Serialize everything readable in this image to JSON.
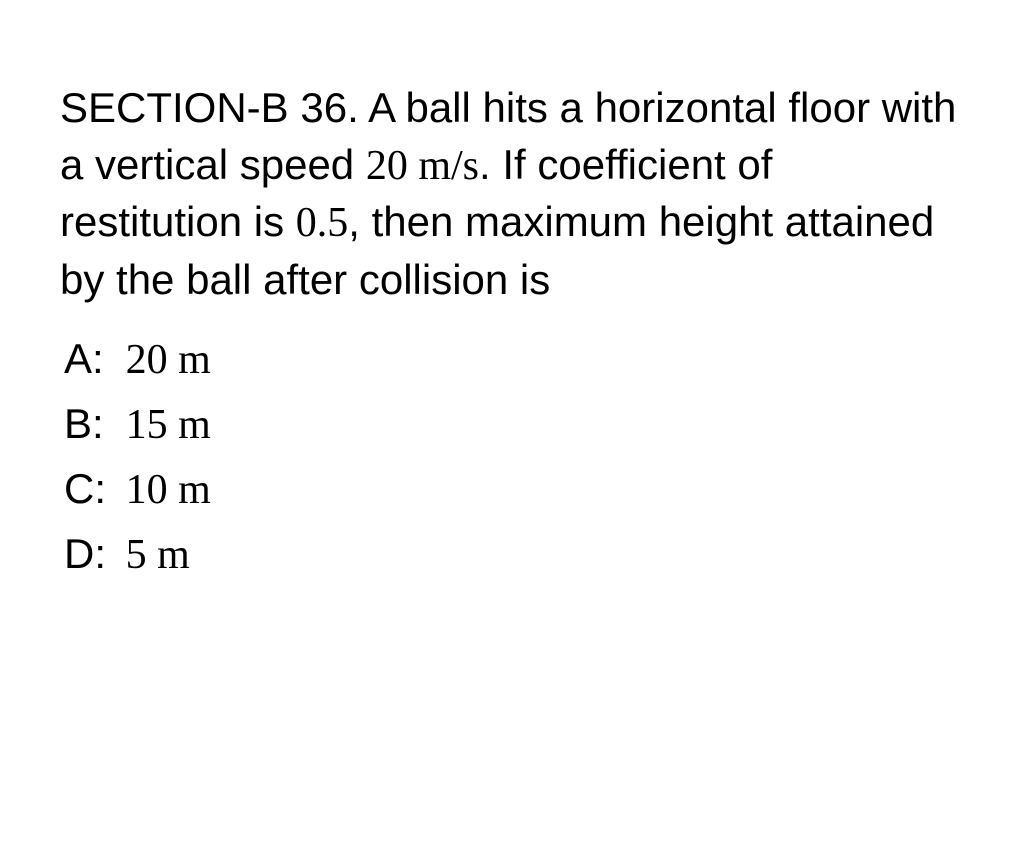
{
  "question": {
    "section_label": "SECTION-B 36.",
    "text_part1": " A ball hits a horizontal floor with a vertical speed ",
    "speed_value": "20 m/s",
    "text_part2": ". If coefficient of restitution is ",
    "restitution_value": "0.5",
    "text_part3": ", then maximum height attained by the ball after collision is"
  },
  "options": [
    {
      "label": "A:",
      "value": "20 m"
    },
    {
      "label": "B:",
      "value": "15 m"
    },
    {
      "label": "C:",
      "value": "10 m"
    },
    {
      "label": "D:",
      "value": "5 m"
    }
  ],
  "style": {
    "background_color": "#ffffff",
    "text_color": "#000000",
    "question_fontsize": 42,
    "option_fontsize": 42
  }
}
